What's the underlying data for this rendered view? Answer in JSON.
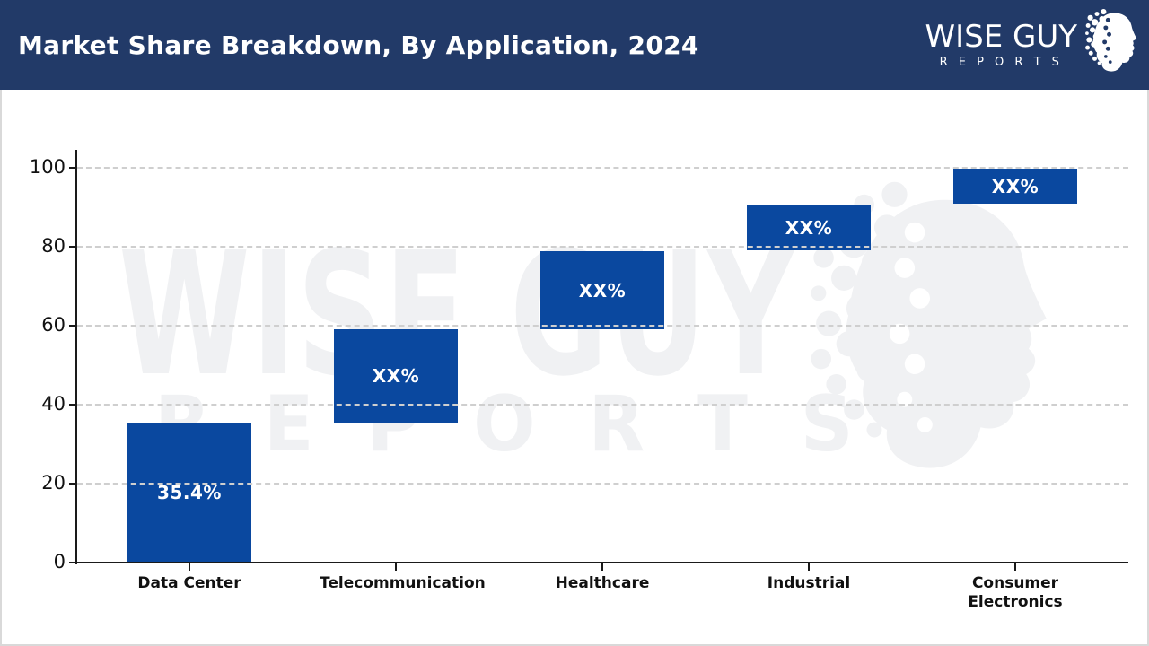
{
  "header": {
    "title": "Market Share Breakdown, By Application, 2024",
    "logo": {
      "line1": "WISE GUY",
      "line2": "R E P O R T S"
    }
  },
  "watermark": {
    "line1": "WISE GUY",
    "line2": "R E P O R T S"
  },
  "chart_data": {
    "type": "bar",
    "variant": "floating-cumulative-segments",
    "title": "Market Share Breakdown, By Application, 2024",
    "categories": [
      "Data Center",
      "Telecommunication",
      "Healthcare",
      "Industrial",
      "Consumer Electronics"
    ],
    "segments": [
      {
        "category": "Data Center",
        "start": 0,
        "end": 35.4,
        "label": "35.4%"
      },
      {
        "category": "Telecommunication",
        "start": 35.4,
        "end": 59.0,
        "label": "XX%"
      },
      {
        "category": "Healthcare",
        "start": 59.0,
        "end": 78.8,
        "label": "XX%"
      },
      {
        "category": "Industrial",
        "start": 79.0,
        "end": 90.5,
        "label": "XX%"
      },
      {
        "category": "Consumer Electronics",
        "start": 90.8,
        "end": 99.8,
        "label": "XX%"
      }
    ],
    "xlabel": "",
    "ylabel": "",
    "ylim": [
      0,
      100
    ],
    "yticks": [
      0,
      20,
      40,
      60,
      80,
      100
    ],
    "grid": "horizontal-dashed",
    "legend": "none"
  },
  "colors": {
    "header_bg": "#223a68",
    "title_text": "#ffffff",
    "bar_fill": "#0a489f",
    "bar_label": "#ffffff",
    "axis": "#1a1a1a",
    "grid": "#cfcfcf",
    "tick_label": "#111111",
    "watermark": "#f0f1f3"
  }
}
